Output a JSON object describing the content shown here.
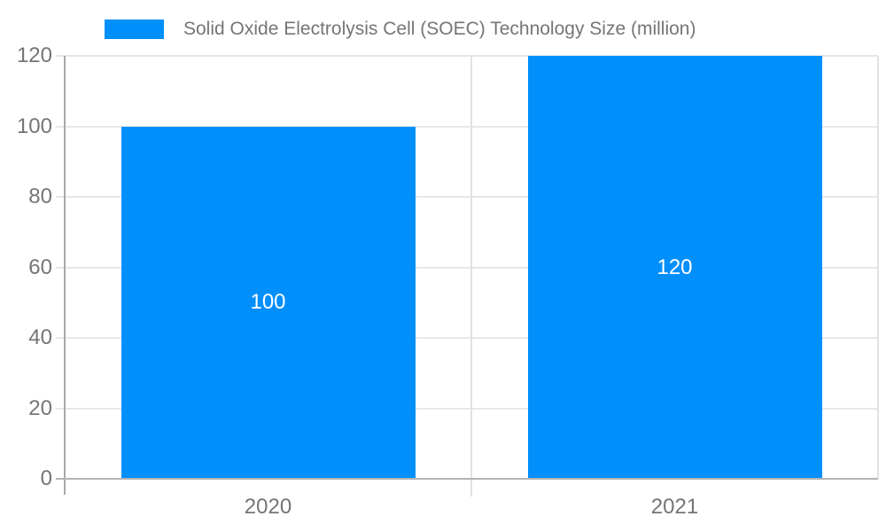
{
  "legend": {
    "label": "Solid Oxide Electrolysis Cell (SOEC) Technology Size (million)",
    "swatch_color": "#008FFB",
    "position": "top"
  },
  "chart_data": {
    "type": "bar",
    "title": "",
    "categories": [
      "2020",
      "2021"
    ],
    "series": [
      {
        "name": "Solid Oxide Electrolysis Cell (SOEC) Technology Size (million)",
        "values": [
          100,
          120
        ]
      }
    ],
    "data_labels": [
      "100",
      "120"
    ],
    "xlabel": "",
    "ylabel": "",
    "y_ticks": [
      0,
      20,
      40,
      60,
      80,
      100,
      120
    ],
    "ylim": [
      0,
      120
    ],
    "grid": true,
    "legend_position": "top",
    "colors": {
      "bar": "#008FFB",
      "data_label": "#ffffff",
      "tick_label": "#757575",
      "category_label": "#757575",
      "legend_label": "#757575",
      "gridline": "#e7e7e7",
      "axis_line": "#a8a8a8",
      "baseline": "#b3b3b3",
      "separator": "#e2e2e2",
      "background": "#ffffff"
    }
  }
}
